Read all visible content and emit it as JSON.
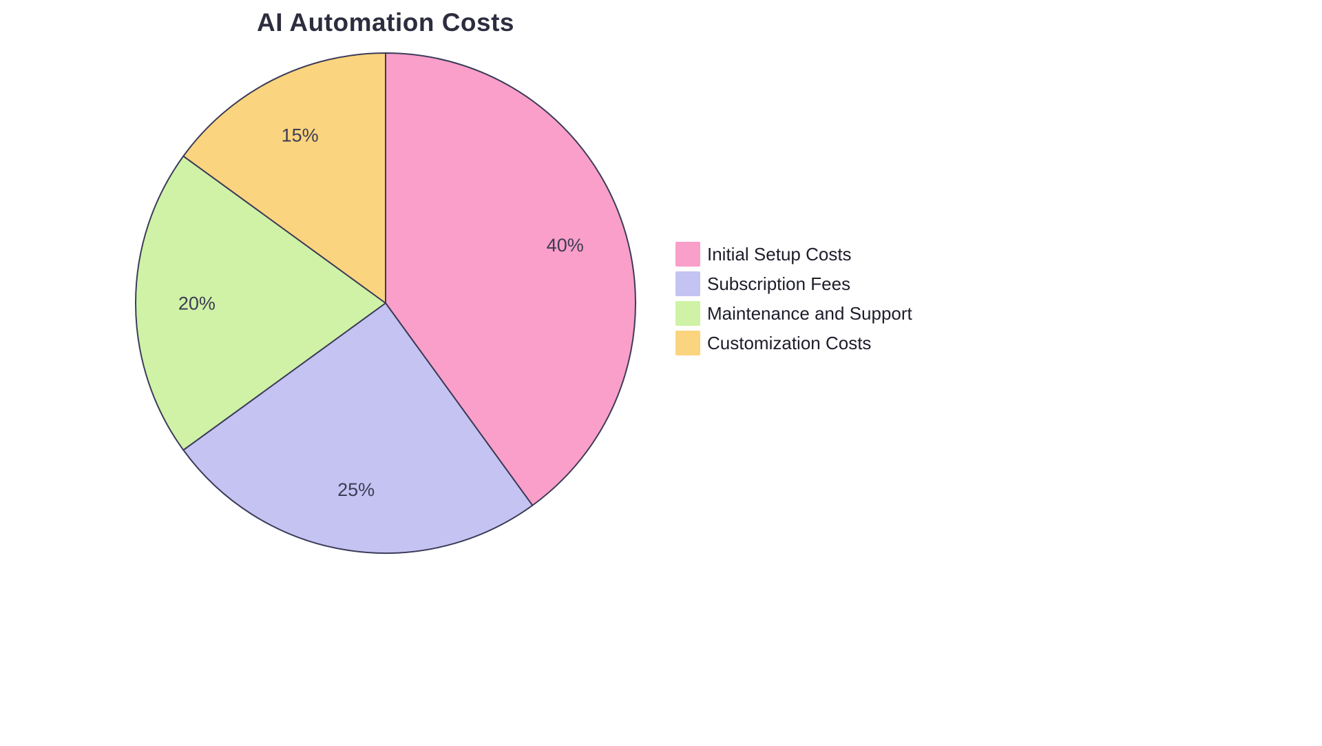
{
  "chart_data": {
    "type": "pie",
    "title": "AI Automation Costs",
    "labels": [
      "Initial Setup Costs",
      "Subscription Fees",
      "Maintenance and Support",
      "Customization Costs"
    ],
    "values": [
      40,
      25,
      20,
      15
    ],
    "slice_labels": [
      "40%",
      "25%",
      "20%",
      "15%"
    ],
    "colors": [
      "#f99fc9",
      "#c5c3f2",
      "#cff2a6",
      "#fad47e"
    ],
    "stroke_color": "#3b3b58",
    "start_angle_deg": 0,
    "direction": "clockwise",
    "legend_position": "right",
    "background": "#ffffff"
  }
}
